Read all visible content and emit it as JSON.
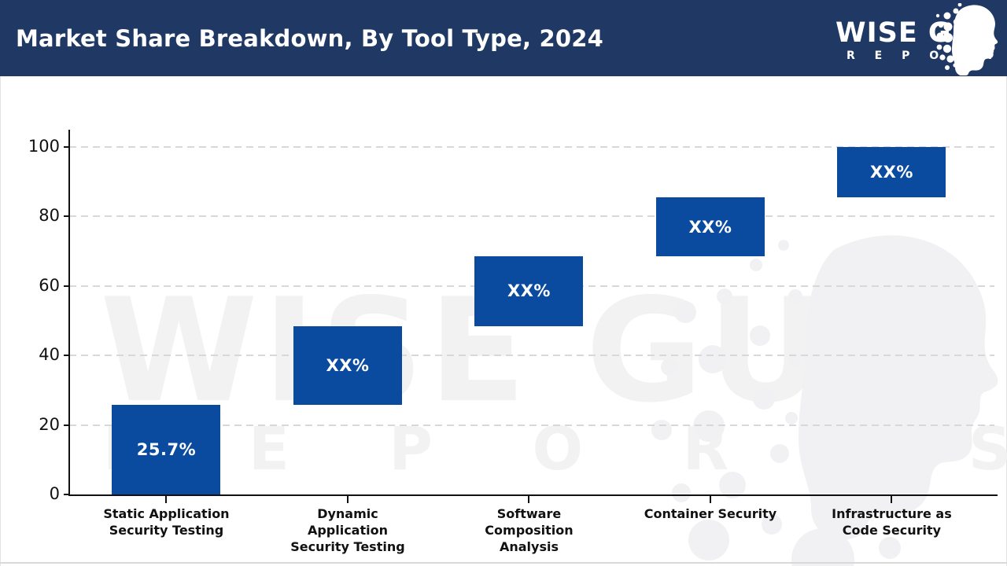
{
  "header": {
    "title": "Market Share Breakdown, By Tool Type, 2024",
    "bg_color": "#1f3864",
    "logo": {
      "line1": "WISE GUY",
      "line2": "REPORTS"
    }
  },
  "watermark": {
    "line1": "WISE GUY",
    "line2": "R E P O R T S"
  },
  "chart_data": {
    "type": "bar",
    "variant": "floating-segment-waterfall",
    "title": "Market Share Breakdown, By Tool Type, 2024",
    "categories": [
      "Static Application\nSecurity Testing",
      "Dynamic\nApplication\nSecurity Testing",
      "Software\nComposition\nAnalysis",
      "Container Security",
      "Infrastructure as\nCode Security"
    ],
    "segments": [
      {
        "start": 0,
        "end": 25.7,
        "label": "25.7%"
      },
      {
        "start": 25.7,
        "end": 48.5,
        "label": "XX%"
      },
      {
        "start": 48.5,
        "end": 68.5,
        "label": "XX%"
      },
      {
        "start": 68.5,
        "end": 85.5,
        "label": "XX%"
      },
      {
        "start": 85.5,
        "end": 100,
        "label": "XX%"
      }
    ],
    "xlabel": "",
    "ylabel": "",
    "ylim": [
      0,
      100
    ],
    "yticks": [
      0,
      20,
      40,
      60,
      80,
      100
    ],
    "grid": {
      "horizontal": true,
      "style": "dashed",
      "color": "#d8d8d8"
    },
    "legend": "none",
    "bar_color": "#0a4ba0",
    "bar_label_color": "#ffffff",
    "axis_color": "#111111"
  }
}
